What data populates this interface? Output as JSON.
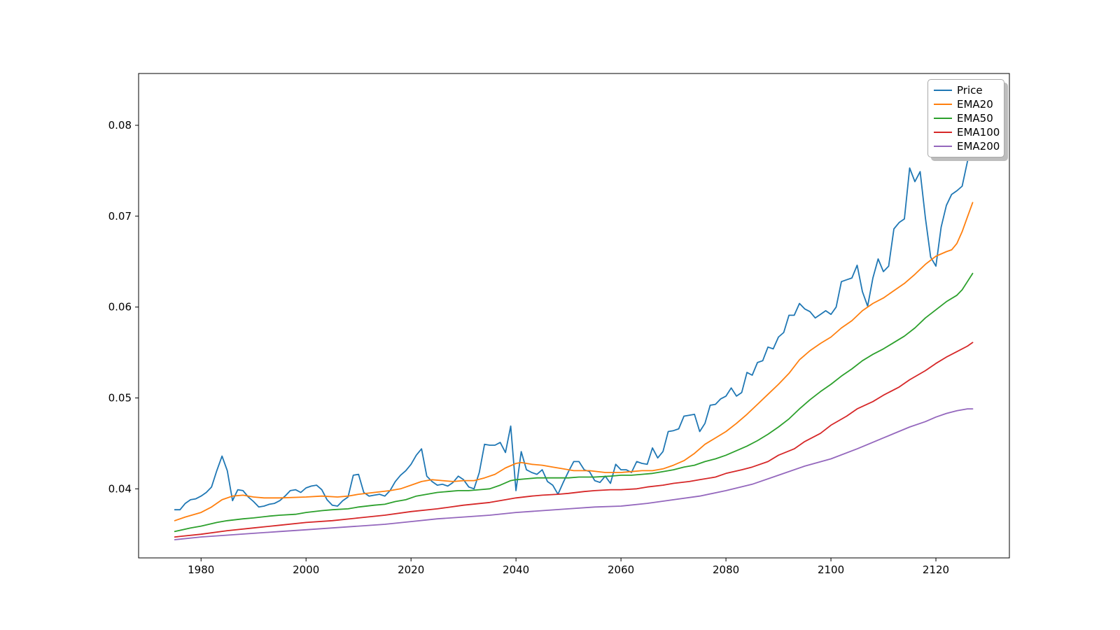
{
  "figure": {
    "background": "#ffffff",
    "spine_color": "#000000",
    "tick_label_color": "#000000"
  },
  "chart_data": {
    "type": "line",
    "title": "",
    "xlabel": "",
    "ylabel": "",
    "grid": false,
    "xlim": [
      1968.1,
      2134.0
    ],
    "ylim": [
      0.0324,
      0.0857
    ],
    "xticks": [
      1980,
      2000,
      2020,
      2040,
      2060,
      2080,
      2100,
      2120
    ],
    "yticks": [
      0.04,
      0.05,
      0.06,
      0.07,
      0.08
    ],
    "legend": {
      "position": "upper right",
      "entries": [
        "Price",
        "EMA20",
        "EMA50",
        "EMA100",
        "EMA200"
      ]
    },
    "series": [
      {
        "name": "Price",
        "color": "#1f77b4",
        "x_start": 1975,
        "x_step": 1,
        "values": [
          0.0377,
          0.0377,
          0.0384,
          0.0388,
          0.0389,
          0.0392,
          0.0396,
          0.0402,
          0.042,
          0.0436,
          0.042,
          0.0387,
          0.0399,
          0.0398,
          0.0391,
          0.0386,
          0.038,
          0.0381,
          0.0383,
          0.0384,
          0.0387,
          0.0392,
          0.0398,
          0.0399,
          0.0396,
          0.0401,
          0.0403,
          0.0404,
          0.0399,
          0.0388,
          0.0382,
          0.0381,
          0.0387,
          0.0391,
          0.0415,
          0.0416,
          0.0396,
          0.0392,
          0.0393,
          0.0394,
          0.0392,
          0.0398,
          0.0408,
          0.0415,
          0.042,
          0.0427,
          0.0437,
          0.0444,
          0.0414,
          0.0408,
          0.0404,
          0.0405,
          0.0403,
          0.0407,
          0.0414,
          0.041,
          0.0402,
          0.04,
          0.0418,
          0.0449,
          0.0448,
          0.0448,
          0.0451,
          0.044,
          0.0469,
          0.0398,
          0.0441,
          0.0421,
          0.0418,
          0.0416,
          0.0421,
          0.0408,
          0.0404,
          0.0394,
          0.0407,
          0.0419,
          0.043,
          0.043,
          0.0421,
          0.0419,
          0.0409,
          0.0407,
          0.0414,
          0.0406,
          0.0427,
          0.0421,
          0.0421,
          0.0418,
          0.043,
          0.0428,
          0.0427,
          0.0445,
          0.0434,
          0.0441,
          0.0463,
          0.0464,
          0.0466,
          0.048,
          0.0481,
          0.0482,
          0.0463,
          0.0472,
          0.0492,
          0.0493,
          0.0499,
          0.0502,
          0.0511,
          0.0502,
          0.0506,
          0.0528,
          0.0525,
          0.0539,
          0.0541,
          0.0556,
          0.0554,
          0.0567,
          0.0572,
          0.0591,
          0.0591,
          0.0604,
          0.0598,
          0.0595,
          0.0588,
          0.0592,
          0.0596,
          0.0592,
          0.06,
          0.0628,
          0.063,
          0.0632,
          0.0646,
          0.0617,
          0.0601,
          0.0632,
          0.0653,
          0.0639,
          0.0645,
          0.0686,
          0.0693,
          0.0697,
          0.0753,
          0.0738,
          0.0749,
          0.0698,
          0.0655,
          0.0645,
          0.0688,
          0.0712,
          0.0724,
          0.0728,
          0.0733,
          0.076,
          0.0778
        ]
      },
      {
        "name": "EMA20",
        "color": "#ff7f0e",
        "points": [
          [
            1975,
            0.0365
          ],
          [
            1977,
            0.0369
          ],
          [
            1980,
            0.0374
          ],
          [
            1982,
            0.038
          ],
          [
            1984,
            0.0388
          ],
          [
            1986,
            0.0392
          ],
          [
            1988,
            0.0393
          ],
          [
            1990,
            0.0391
          ],
          [
            1992,
            0.039
          ],
          [
            1995,
            0.039
          ],
          [
            2000,
            0.0391
          ],
          [
            2003,
            0.0392
          ],
          [
            2006,
            0.0391
          ],
          [
            2008,
            0.0392
          ],
          [
            2010,
            0.0394
          ],
          [
            2013,
            0.0396
          ],
          [
            2016,
            0.0398
          ],
          [
            2018,
            0.04
          ],
          [
            2020,
            0.0404
          ],
          [
            2022,
            0.0408
          ],
          [
            2024,
            0.041
          ],
          [
            2026,
            0.0409
          ],
          [
            2028,
            0.0408
          ],
          [
            2030,
            0.0409
          ],
          [
            2032,
            0.0409
          ],
          [
            2034,
            0.0412
          ],
          [
            2036,
            0.0416
          ],
          [
            2038,
            0.0423
          ],
          [
            2040,
            0.0428
          ],
          [
            2041,
            0.0429
          ],
          [
            2043,
            0.0427
          ],
          [
            2045,
            0.0426
          ],
          [
            2047,
            0.0424
          ],
          [
            2049,
            0.0422
          ],
          [
            2051,
            0.042
          ],
          [
            2054,
            0.042
          ],
          [
            2057,
            0.0418
          ],
          [
            2060,
            0.0418
          ],
          [
            2062,
            0.0419
          ],
          [
            2064,
            0.042
          ],
          [
            2066,
            0.042
          ],
          [
            2068,
            0.0422
          ],
          [
            2070,
            0.0426
          ],
          [
            2072,
            0.0431
          ],
          [
            2074,
            0.0439
          ],
          [
            2076,
            0.0449
          ],
          [
            2078,
            0.0456
          ],
          [
            2080,
            0.0463
          ],
          [
            2082,
            0.0472
          ],
          [
            2084,
            0.0482
          ],
          [
            2086,
            0.0493
          ],
          [
            2088,
            0.0504
          ],
          [
            2090,
            0.0515
          ],
          [
            2092,
            0.0527
          ],
          [
            2094,
            0.0542
          ],
          [
            2096,
            0.0552
          ],
          [
            2098,
            0.056
          ],
          [
            2100,
            0.0567
          ],
          [
            2102,
            0.0577
          ],
          [
            2104,
            0.0585
          ],
          [
            2106,
            0.0596
          ],
          [
            2108,
            0.0604
          ],
          [
            2110,
            0.061
          ],
          [
            2112,
            0.0618
          ],
          [
            2114,
            0.0626
          ],
          [
            2116,
            0.0636
          ],
          [
            2118,
            0.0647
          ],
          [
            2120,
            0.0656
          ],
          [
            2122,
            0.0661
          ],
          [
            2123,
            0.0663
          ],
          [
            2124,
            0.067
          ],
          [
            2125,
            0.0683
          ],
          [
            2126,
            0.0699
          ],
          [
            2127,
            0.0715
          ]
        ]
      },
      {
        "name": "EMA50",
        "color": "#2ca02c",
        "points": [
          [
            1975,
            0.0353
          ],
          [
            1978,
            0.0357
          ],
          [
            1980,
            0.0359
          ],
          [
            1983,
            0.0363
          ],
          [
            1985,
            0.0365
          ],
          [
            1988,
            0.0367
          ],
          [
            1990,
            0.0368
          ],
          [
            1993,
            0.037
          ],
          [
            1995,
            0.0371
          ],
          [
            1998,
            0.0372
          ],
          [
            2000,
            0.0374
          ],
          [
            2003,
            0.0376
          ],
          [
            2005,
            0.0377
          ],
          [
            2008,
            0.0378
          ],
          [
            2010,
            0.038
          ],
          [
            2013,
            0.0382
          ],
          [
            2015,
            0.0383
          ],
          [
            2017,
            0.0386
          ],
          [
            2019,
            0.0388
          ],
          [
            2021,
            0.0392
          ],
          [
            2023,
            0.0394
          ],
          [
            2025,
            0.0396
          ],
          [
            2027,
            0.0397
          ],
          [
            2029,
            0.0398
          ],
          [
            2031,
            0.0398
          ],
          [
            2033,
            0.0399
          ],
          [
            2035,
            0.04
          ],
          [
            2037,
            0.0404
          ],
          [
            2039,
            0.0409
          ],
          [
            2040,
            0.041
          ],
          [
            2042,
            0.0411
          ],
          [
            2044,
            0.0412
          ],
          [
            2046,
            0.0412
          ],
          [
            2048,
            0.0412
          ],
          [
            2050,
            0.0412
          ],
          [
            2052,
            0.0413
          ],
          [
            2055,
            0.0413
          ],
          [
            2058,
            0.0414
          ],
          [
            2060,
            0.0415
          ],
          [
            2062,
            0.0415
          ],
          [
            2064,
            0.0416
          ],
          [
            2066,
            0.0417
          ],
          [
            2068,
            0.0419
          ],
          [
            2070,
            0.0421
          ],
          [
            2072,
            0.0424
          ],
          [
            2074,
            0.0426
          ],
          [
            2076,
            0.043
          ],
          [
            2078,
            0.0433
          ],
          [
            2080,
            0.0437
          ],
          [
            2082,
            0.0442
          ],
          [
            2084,
            0.0447
          ],
          [
            2086,
            0.0453
          ],
          [
            2088,
            0.046
          ],
          [
            2090,
            0.0468
          ],
          [
            2092,
            0.0477
          ],
          [
            2094,
            0.0488
          ],
          [
            2096,
            0.0498
          ],
          [
            2098,
            0.0507
          ],
          [
            2100,
            0.0515
          ],
          [
            2102,
            0.0524
          ],
          [
            2104,
            0.0532
          ],
          [
            2106,
            0.0541
          ],
          [
            2108,
            0.0548
          ],
          [
            2110,
            0.0554
          ],
          [
            2112,
            0.0561
          ],
          [
            2114,
            0.0568
          ],
          [
            2116,
            0.0577
          ],
          [
            2118,
            0.0588
          ],
          [
            2120,
            0.0597
          ],
          [
            2122,
            0.0606
          ],
          [
            2124,
            0.0613
          ],
          [
            2125,
            0.0619
          ],
          [
            2126,
            0.0628
          ],
          [
            2127,
            0.0637
          ]
        ]
      },
      {
        "name": "EMA100",
        "color": "#d62728",
        "points": [
          [
            1975,
            0.0347
          ],
          [
            1980,
            0.035
          ],
          [
            1985,
            0.0354
          ],
          [
            1990,
            0.0357
          ],
          [
            1995,
            0.036
          ],
          [
            2000,
            0.0363
          ],
          [
            2005,
            0.0365
          ],
          [
            2010,
            0.0368
          ],
          [
            2015,
            0.0371
          ],
          [
            2020,
            0.0375
          ],
          [
            2025,
            0.0378
          ],
          [
            2030,
            0.0382
          ],
          [
            2035,
            0.0385
          ],
          [
            2038,
            0.0388
          ],
          [
            2040,
            0.039
          ],
          [
            2043,
            0.0392
          ],
          [
            2045,
            0.0393
          ],
          [
            2048,
            0.0394
          ],
          [
            2050,
            0.0395
          ],
          [
            2053,
            0.0397
          ],
          [
            2055,
            0.0398
          ],
          [
            2058,
            0.0399
          ],
          [
            2060,
            0.0399
          ],
          [
            2063,
            0.04
          ],
          [
            2065,
            0.0402
          ],
          [
            2068,
            0.0404
          ],
          [
            2070,
            0.0406
          ],
          [
            2073,
            0.0408
          ],
          [
            2075,
            0.041
          ],
          [
            2078,
            0.0413
          ],
          [
            2080,
            0.0417
          ],
          [
            2083,
            0.0421
          ],
          [
            2085,
            0.0424
          ],
          [
            2088,
            0.043
          ],
          [
            2090,
            0.0437
          ],
          [
            2093,
            0.0444
          ],
          [
            2095,
            0.0452
          ],
          [
            2098,
            0.0461
          ],
          [
            2100,
            0.047
          ],
          [
            2103,
            0.048
          ],
          [
            2105,
            0.0488
          ],
          [
            2108,
            0.0496
          ],
          [
            2110,
            0.0503
          ],
          [
            2113,
            0.0512
          ],
          [
            2115,
            0.052
          ],
          [
            2118,
            0.053
          ],
          [
            2120,
            0.0538
          ],
          [
            2122,
            0.0545
          ],
          [
            2124,
            0.0551
          ],
          [
            2126,
            0.0557
          ],
          [
            2127,
            0.0561
          ]
        ]
      },
      {
        "name": "EMA200",
        "color": "#9467bd",
        "points": [
          [
            1975,
            0.0344
          ],
          [
            1980,
            0.0347
          ],
          [
            1985,
            0.0349
          ],
          [
            1990,
            0.0351
          ],
          [
            1995,
            0.0353
          ],
          [
            2000,
            0.0355
          ],
          [
            2005,
            0.0357
          ],
          [
            2010,
            0.0359
          ],
          [
            2015,
            0.0361
          ],
          [
            2020,
            0.0364
          ],
          [
            2025,
            0.0367
          ],
          [
            2030,
            0.0369
          ],
          [
            2035,
            0.0371
          ],
          [
            2040,
            0.0374
          ],
          [
            2045,
            0.0376
          ],
          [
            2050,
            0.0378
          ],
          [
            2055,
            0.038
          ],
          [
            2060,
            0.0381
          ],
          [
            2065,
            0.0384
          ],
          [
            2070,
            0.0388
          ],
          [
            2075,
            0.0392
          ],
          [
            2080,
            0.0398
          ],
          [
            2085,
            0.0405
          ],
          [
            2090,
            0.0415
          ],
          [
            2095,
            0.0425
          ],
          [
            2100,
            0.0433
          ],
          [
            2105,
            0.0444
          ],
          [
            2110,
            0.0456
          ],
          [
            2115,
            0.0468
          ],
          [
            2118,
            0.0474
          ],
          [
            2120,
            0.0479
          ],
          [
            2122,
            0.0483
          ],
          [
            2124,
            0.0486
          ],
          [
            2126,
            0.0488
          ],
          [
            2127,
            0.0488
          ]
        ]
      }
    ]
  }
}
